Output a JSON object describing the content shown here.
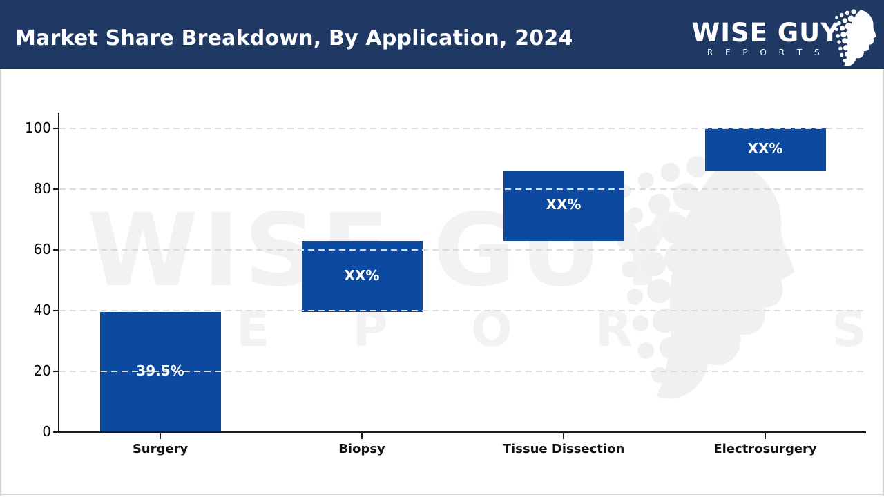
{
  "header": {
    "title": "Market Share Breakdown, By Application, 2024",
    "logo": {
      "line1": "WISE GUY",
      "line2": "R E P O R T S"
    }
  },
  "watermark": {
    "line1": "WISE GUY",
    "line2": "R E P O R T S"
  },
  "chart_data": {
    "type": "bar",
    "subtype": "waterfall-segments",
    "title": "Market Share Breakdown, By Application, 2024",
    "categories": [
      "Surgery",
      "Biopsy",
      "Tissue Dissection",
      "Electrosurgery"
    ],
    "segments": [
      {
        "category": "Surgery",
        "start": 0,
        "end": 39.5,
        "label": "39.5%"
      },
      {
        "category": "Biopsy",
        "start": 39.5,
        "end": 63,
        "label": "XX%"
      },
      {
        "category": "Tissue Dissection",
        "start": 63,
        "end": 86,
        "label": "XX%"
      },
      {
        "category": "Electrosurgery",
        "start": 86,
        "end": 100,
        "label": "XX%"
      }
    ],
    "xlabel": "",
    "ylabel": "",
    "ylim": [
      0,
      100
    ],
    "yticks": [
      0,
      20,
      40,
      60,
      80,
      100
    ],
    "grid": "dashed-horizontal-over-bars",
    "legend": "none"
  },
  "colors": {
    "header_bg": "#1f3864",
    "bar": "#0c4a9f",
    "bar_value_text": "#ffffff",
    "grid": "#dcdcdc",
    "axis": "#1a1a1a",
    "watermark": "#f2f2f4"
  }
}
